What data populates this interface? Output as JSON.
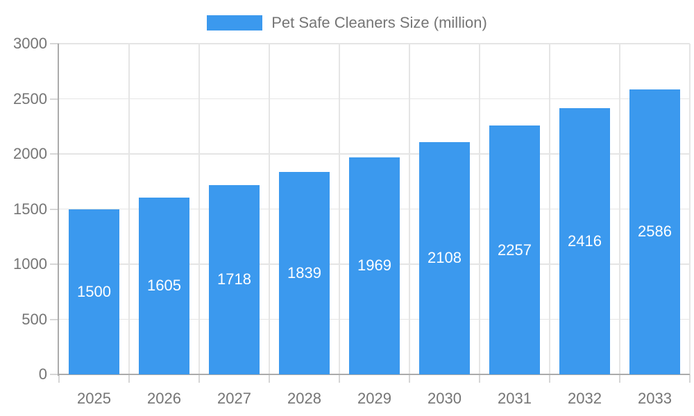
{
  "legend": {
    "label": "Pet Safe Cleaners Size (million)"
  },
  "chart_data": {
    "type": "bar",
    "title": "Pet Safe Cleaners Size (million)",
    "categories": [
      "2025",
      "2026",
      "2027",
      "2028",
      "2029",
      "2030",
      "2031",
      "2032",
      "2033"
    ],
    "values": [
      1500,
      1605,
      1718,
      1839,
      1969,
      2108,
      2257,
      2416,
      2586
    ],
    "xlabel": "",
    "ylabel": "",
    "ylim": [
      0,
      3000
    ],
    "yticks": [
      0,
      500,
      1000,
      1500,
      2000,
      2500,
      3000
    ],
    "grid": true,
    "legend_position": "top",
    "colors": {
      "bar": "#3b99ee",
      "value_label": "#ffffff",
      "axis_text": "#757575",
      "grid_line": "#e5e5e5",
      "axis_line": "#ababab",
      "tick_mark": "#d6d6d6",
      "background": "#ffffff"
    }
  }
}
